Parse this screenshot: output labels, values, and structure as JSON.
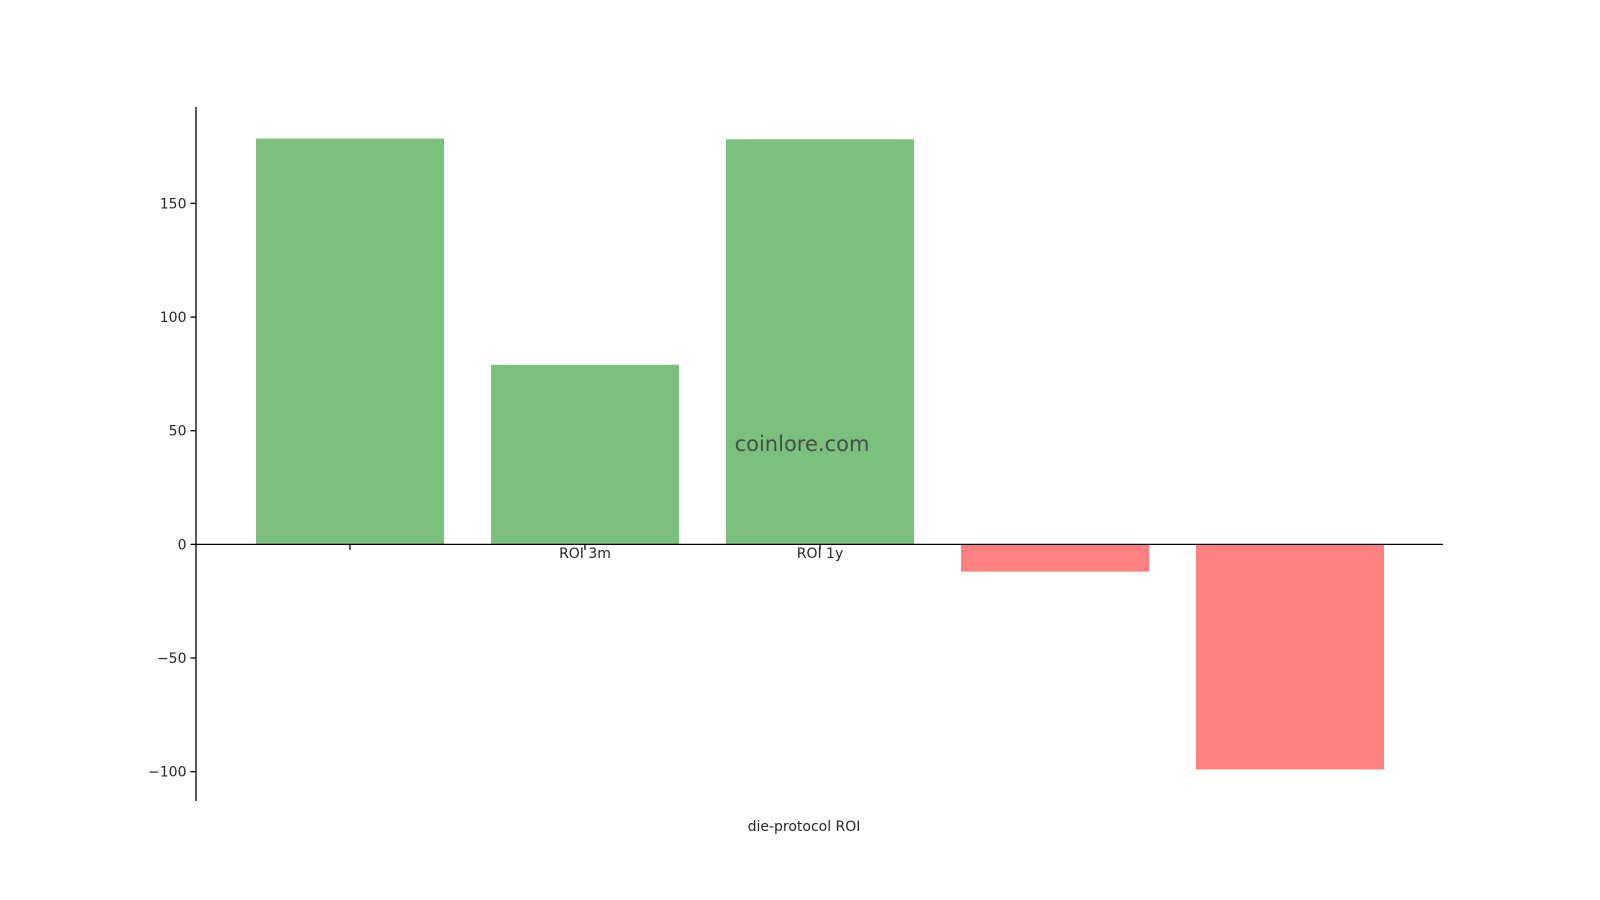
{
  "chart_data": {
    "type": "bar",
    "title": "",
    "xlabel": "die-protocol ROI",
    "ylabel": "",
    "categories": [
      "",
      "ROI 3m",
      "ROI 1y",
      "",
      ""
    ],
    "values": [
      178.5,
      79,
      178.2,
      -12,
      -99
    ],
    "bar_sign_colors": [
      "positive",
      "positive",
      "positive",
      "negative",
      "negative"
    ],
    "positive_color": "#7cc07e",
    "negative_color": "#ff8080",
    "axis_color": "#000000",
    "tick_text_color": "#262626",
    "ytick_labels": [
      "150",
      "100",
      "50",
      "0",
      "−50",
      "−100"
    ],
    "ytick_values": [
      150,
      100,
      50,
      0,
      -50,
      -100
    ],
    "ylim": [
      -112.9,
      192.4
    ],
    "grid": false,
    "legend_position": "none",
    "x_ticks_visible_for_bars": [
      0,
      1,
      2
    ],
    "watermark": "coinlore.com",
    "watermark_color": "#3c3c3c"
  }
}
